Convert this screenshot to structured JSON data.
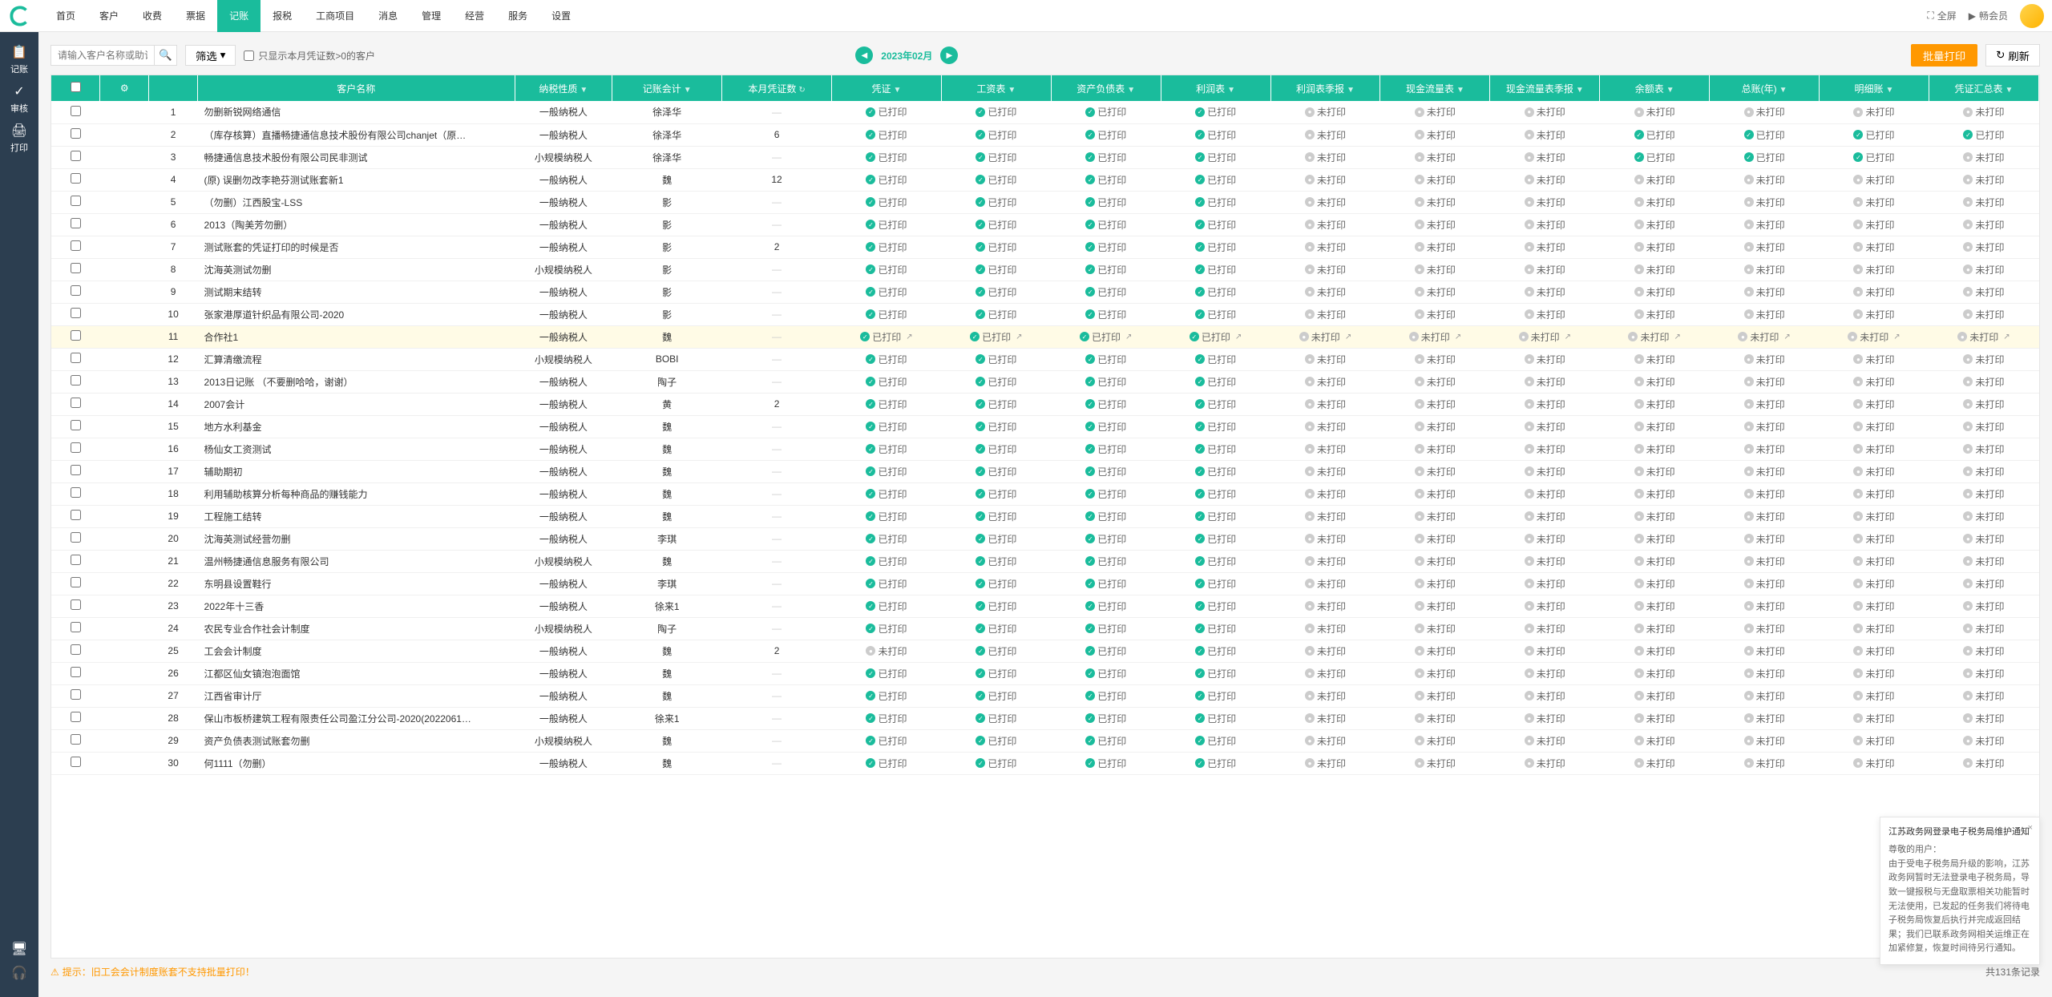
{
  "nav": {
    "items": [
      "首页",
      "客户",
      "收费",
      "票据",
      "记账",
      "报税",
      "工商项目",
      "消息",
      "管理",
      "经营",
      "服务",
      "设置"
    ],
    "activeIndex": 4,
    "fullscreen": "全屏",
    "member": "畅会员"
  },
  "sidebar": {
    "items": [
      {
        "icon": "📋",
        "label": "记账"
      },
      {
        "icon": "✓",
        "label": "审核"
      },
      {
        "icon": "🖨",
        "label": "打印"
      }
    ],
    "bottom": [
      {
        "icon": "🖥",
        "label": ""
      },
      {
        "icon": "🎧",
        "label": ""
      }
    ]
  },
  "toolbar": {
    "searchPlaceholder": "请输入客户名称或助记码",
    "filterLabel": "筛选",
    "checkboxLabel": "只显示本月凭证数>0的客户",
    "dateText": "2023年02月",
    "batchPrint": "批量打印",
    "refresh": "刷新"
  },
  "table": {
    "headers": [
      "",
      "",
      "",
      "客户名称",
      "纳税性质",
      "记账会计",
      "本月凭证数",
      "凭证",
      "工资表",
      "资产负债表",
      "利润表",
      "利润表季报",
      "现金流量表",
      "现金流量表季报",
      "余额表",
      "总账(年)",
      "明细账",
      "凭证汇总表"
    ],
    "statusLabels": {
      "printed": "已打印",
      "notPrinted": "未打印"
    },
    "rows": [
      {
        "idx": 1,
        "name": "勿删新锐网络通信",
        "type": "一般纳税人",
        "acct": "徐泽华",
        "count": "",
        "c1": "p",
        "c2": "p",
        "c3": "p",
        "c4": "p",
        "c5": "n",
        "c6": "n",
        "c7": "n",
        "c8": "n",
        "c9": "n",
        "c10": "n",
        "c11": "n"
      },
      {
        "idx": 2,
        "name": "（库存核算）直播畅捷通信息技术股份有限公司chanjet（原…",
        "type": "一般纳税人",
        "acct": "徐泽华",
        "count": "6",
        "c1": "p",
        "c2": "p",
        "c3": "p",
        "c4": "p",
        "c5": "n",
        "c6": "n",
        "c7": "n",
        "c8": "p",
        "c9": "p",
        "c10": "p",
        "c11": "p"
      },
      {
        "idx": 3,
        "name": "畅捷通信息技术股份有限公司民非测试",
        "type": "小规模纳税人",
        "acct": "徐泽华",
        "count": "",
        "c1": "p",
        "c2": "p",
        "c3": "p",
        "c4": "p",
        "c5": "n",
        "c6": "n",
        "c7": "n",
        "c8": "p",
        "c9": "p",
        "c10": "p",
        "c11": "n"
      },
      {
        "idx": 4,
        "name": "(原) 误删勿改李艳芬测试账套新1",
        "type": "一般纳税人",
        "acct": "魏",
        "count": "12",
        "c1": "p",
        "c2": "p",
        "c3": "p",
        "c4": "p",
        "c5": "n",
        "c6": "n",
        "c7": "n",
        "c8": "n",
        "c9": "n",
        "c10": "n",
        "c11": "n"
      },
      {
        "idx": 5,
        "name": "（勿删）江西股宝-LSS",
        "type": "一般纳税人",
        "acct": "影",
        "count": "",
        "c1": "p",
        "c2": "p",
        "c3": "p",
        "c4": "p",
        "c5": "n",
        "c6": "n",
        "c7": "n",
        "c8": "n",
        "c9": "n",
        "c10": "n",
        "c11": "n"
      },
      {
        "idx": 6,
        "name": "2013（陶美芳勿删）",
        "type": "一般纳税人",
        "acct": "影",
        "count": "",
        "c1": "p",
        "c2": "p",
        "c3": "p",
        "c4": "p",
        "c5": "n",
        "c6": "n",
        "c7": "n",
        "c8": "n",
        "c9": "n",
        "c10": "n",
        "c11": "n"
      },
      {
        "idx": 7,
        "name": "测试账套的凭证打印的时候是否",
        "type": "一般纳税人",
        "acct": "影",
        "count": "2",
        "c1": "p",
        "c2": "p",
        "c3": "p",
        "c4": "p",
        "c5": "n",
        "c6": "n",
        "c7": "n",
        "c8": "n",
        "c9": "n",
        "c10": "n",
        "c11": "n"
      },
      {
        "idx": 8,
        "name": "沈海英测试勿删",
        "type": "小规模纳税人",
        "acct": "影",
        "count": "",
        "c1": "p",
        "c2": "p",
        "c3": "p",
        "c4": "p",
        "c5": "n",
        "c6": "n",
        "c7": "n",
        "c8": "n",
        "c9": "n",
        "c10": "n",
        "c11": "n"
      },
      {
        "idx": 9,
        "name": "测试期末结转",
        "type": "一般纳税人",
        "acct": "影",
        "count": "",
        "c1": "p",
        "c2": "p",
        "c3": "p",
        "c4": "p",
        "c5": "n",
        "c6": "n",
        "c7": "n",
        "c8": "n",
        "c9": "n",
        "c10": "n",
        "c11": "n"
      },
      {
        "idx": 10,
        "name": "张家港厚道针织品有限公司-2020",
        "type": "一般纳税人",
        "acct": "影",
        "count": "",
        "c1": "p",
        "c2": "p",
        "c3": "p",
        "c4": "p",
        "c5": "n",
        "c6": "n",
        "c7": "n",
        "c8": "n",
        "c9": "n",
        "c10": "n",
        "c11": "n"
      },
      {
        "idx": 11,
        "name": "合作社1",
        "type": "一般纳税人",
        "acct": "魏",
        "count": "",
        "c1": "p",
        "c2": "p",
        "c3": "p",
        "c4": "p",
        "c5": "n",
        "c6": "n",
        "c7": "n",
        "c8": "n",
        "c9": "n",
        "c10": "n",
        "c11": "n",
        "highlight": true,
        "ext": true
      },
      {
        "idx": 12,
        "name": "汇算清缴流程",
        "type": "小规模纳税人",
        "acct": "BOBI",
        "count": "",
        "c1": "p",
        "c2": "p",
        "c3": "p",
        "c4": "p",
        "c5": "n",
        "c6": "n",
        "c7": "n",
        "c8": "n",
        "c9": "n",
        "c10": "n",
        "c11": "n"
      },
      {
        "idx": 13,
        "name": "2013日记账 （不要删哈哈，谢谢）",
        "type": "一般纳税人",
        "acct": "陶子",
        "count": "",
        "c1": "p",
        "c2": "p",
        "c3": "p",
        "c4": "p",
        "c5": "n",
        "c6": "n",
        "c7": "n",
        "c8": "n",
        "c9": "n",
        "c10": "n",
        "c11": "n"
      },
      {
        "idx": 14,
        "name": "2007会计",
        "type": "一般纳税人",
        "acct": "黄",
        "count": "2",
        "c1": "p",
        "c2": "p",
        "c3": "p",
        "c4": "p",
        "c5": "n",
        "c6": "n",
        "c7": "n",
        "c8": "n",
        "c9": "n",
        "c10": "n",
        "c11": "n"
      },
      {
        "idx": 15,
        "name": "地方水利基金",
        "type": "一般纳税人",
        "acct": "魏",
        "count": "",
        "c1": "p",
        "c2": "p",
        "c3": "p",
        "c4": "p",
        "c5": "n",
        "c6": "n",
        "c7": "n",
        "c8": "n",
        "c9": "n",
        "c10": "n",
        "c11": "n"
      },
      {
        "idx": 16,
        "name": "杨仙女工资测试",
        "type": "一般纳税人",
        "acct": "魏",
        "count": "",
        "c1": "p",
        "c2": "p",
        "c3": "p",
        "c4": "p",
        "c5": "n",
        "c6": "n",
        "c7": "n",
        "c8": "n",
        "c9": "n",
        "c10": "n",
        "c11": "n"
      },
      {
        "idx": 17,
        "name": "辅助期初",
        "type": "一般纳税人",
        "acct": "魏",
        "count": "",
        "c1": "p",
        "c2": "p",
        "c3": "p",
        "c4": "p",
        "c5": "n",
        "c6": "n",
        "c7": "n",
        "c8": "n",
        "c9": "n",
        "c10": "n",
        "c11": "n"
      },
      {
        "idx": 18,
        "name": "利用辅助核算分析每种商品的赚钱能力",
        "type": "一般纳税人",
        "acct": "魏",
        "count": "",
        "c1": "p",
        "c2": "p",
        "c3": "p",
        "c4": "p",
        "c5": "n",
        "c6": "n",
        "c7": "n",
        "c8": "n",
        "c9": "n",
        "c10": "n",
        "c11": "n"
      },
      {
        "idx": 19,
        "name": "工程施工结转",
        "type": "一般纳税人",
        "acct": "魏",
        "count": "",
        "c1": "p",
        "c2": "p",
        "c3": "p",
        "c4": "p",
        "c5": "n",
        "c6": "n",
        "c7": "n",
        "c8": "n",
        "c9": "n",
        "c10": "n",
        "c11": "n"
      },
      {
        "idx": 20,
        "name": "沈海英测试经营勿删",
        "type": "一般纳税人",
        "acct": "李琪",
        "count": "",
        "c1": "p",
        "c2": "p",
        "c3": "p",
        "c4": "p",
        "c5": "n",
        "c6": "n",
        "c7": "n",
        "c8": "n",
        "c9": "n",
        "c10": "n",
        "c11": "n"
      },
      {
        "idx": 21,
        "name": "温州畅捷通信息服务有限公司",
        "type": "小规模纳税人",
        "acct": "魏",
        "count": "",
        "c1": "p",
        "c2": "p",
        "c3": "p",
        "c4": "p",
        "c5": "n",
        "c6": "n",
        "c7": "n",
        "c8": "n",
        "c9": "n",
        "c10": "n",
        "c11": "n"
      },
      {
        "idx": 22,
        "name": "东明县设置鞋行",
        "type": "一般纳税人",
        "acct": "李琪",
        "count": "",
        "c1": "p",
        "c2": "p",
        "c3": "p",
        "c4": "p",
        "c5": "n",
        "c6": "n",
        "c7": "n",
        "c8": "n",
        "c9": "n",
        "c10": "n",
        "c11": "n"
      },
      {
        "idx": 23,
        "name": "2022年十三香",
        "type": "一般纳税人",
        "acct": "徐来1",
        "count": "",
        "c1": "p",
        "c2": "p",
        "c3": "p",
        "c4": "p",
        "c5": "n",
        "c6": "n",
        "c7": "n",
        "c8": "n",
        "c9": "n",
        "c10": "n",
        "c11": "n"
      },
      {
        "idx": 24,
        "name": "农民专业合作社会计制度",
        "type": "小规模纳税人",
        "acct": "陶子",
        "count": "",
        "c1": "p",
        "c2": "p",
        "c3": "p",
        "c4": "p",
        "c5": "n",
        "c6": "n",
        "c7": "n",
        "c8": "n",
        "c9": "n",
        "c10": "n",
        "c11": "n"
      },
      {
        "idx": 25,
        "name": "工会会计制度",
        "type": "一般纳税人",
        "acct": "魏",
        "count": "2",
        "c1": "n",
        "c2": "p",
        "c3": "p",
        "c4": "p",
        "c5": "n",
        "c6": "n",
        "c7": "n",
        "c8": "n",
        "c9": "n",
        "c10": "n",
        "c11": "n"
      },
      {
        "idx": 26,
        "name": "江都区仙女镇泡泡面馆",
        "type": "一般纳税人",
        "acct": "魏",
        "count": "",
        "c1": "p",
        "c2": "p",
        "c3": "p",
        "c4": "p",
        "c5": "n",
        "c6": "n",
        "c7": "n",
        "c8": "n",
        "c9": "n",
        "c10": "n",
        "c11": "n"
      },
      {
        "idx": 27,
        "name": "江西省审计厅",
        "type": "一般纳税人",
        "acct": "魏",
        "count": "",
        "c1": "p",
        "c2": "p",
        "c3": "p",
        "c4": "p",
        "c5": "n",
        "c6": "n",
        "c7": "n",
        "c8": "n",
        "c9": "n",
        "c10": "n",
        "c11": "n"
      },
      {
        "idx": 28,
        "name": "保山市板桥建筑工程有限责任公司盈江分公司-2020(2022061…",
        "type": "一般纳税人",
        "acct": "徐来1",
        "count": "",
        "c1": "p",
        "c2": "p",
        "c3": "p",
        "c4": "p",
        "c5": "n",
        "c6": "n",
        "c7": "n",
        "c8": "n",
        "c9": "n",
        "c10": "n",
        "c11": "n"
      },
      {
        "idx": 29,
        "name": "资产负债表测试账套勿删",
        "type": "小规模纳税人",
        "acct": "魏",
        "count": "",
        "c1": "p",
        "c2": "p",
        "c3": "p",
        "c4": "p",
        "c5": "n",
        "c6": "n",
        "c7": "n",
        "c8": "n",
        "c9": "n",
        "c10": "n",
        "c11": "n"
      },
      {
        "idx": 30,
        "name": "何1111（勿删）",
        "type": "一般纳税人",
        "acct": "魏",
        "count": "",
        "c1": "p",
        "c2": "p",
        "c3": "p",
        "c4": "p",
        "c5": "n",
        "c6": "n",
        "c7": "n",
        "c8": "n",
        "c9": "n",
        "c10": "n",
        "c11": "n"
      }
    ]
  },
  "footer": {
    "tip": "提示：旧工会会计制度账套不支持批量打印！",
    "count": "共131条记录"
  },
  "notification": {
    "title": "江苏政务网登录电子税务局维护通知",
    "line1": "尊敬的用户：",
    "body": "由于受电子税务局升级的影响，江苏政务网暂时无法登录电子税务局，导致一键报税与无盘取票相关功能暂时无法使用，已发起的任务我们将待电子税务局恢复后执行并完成返回结果；我们已联系政务网相关运维正在加紧修复，恢复时间待另行通知。"
  }
}
